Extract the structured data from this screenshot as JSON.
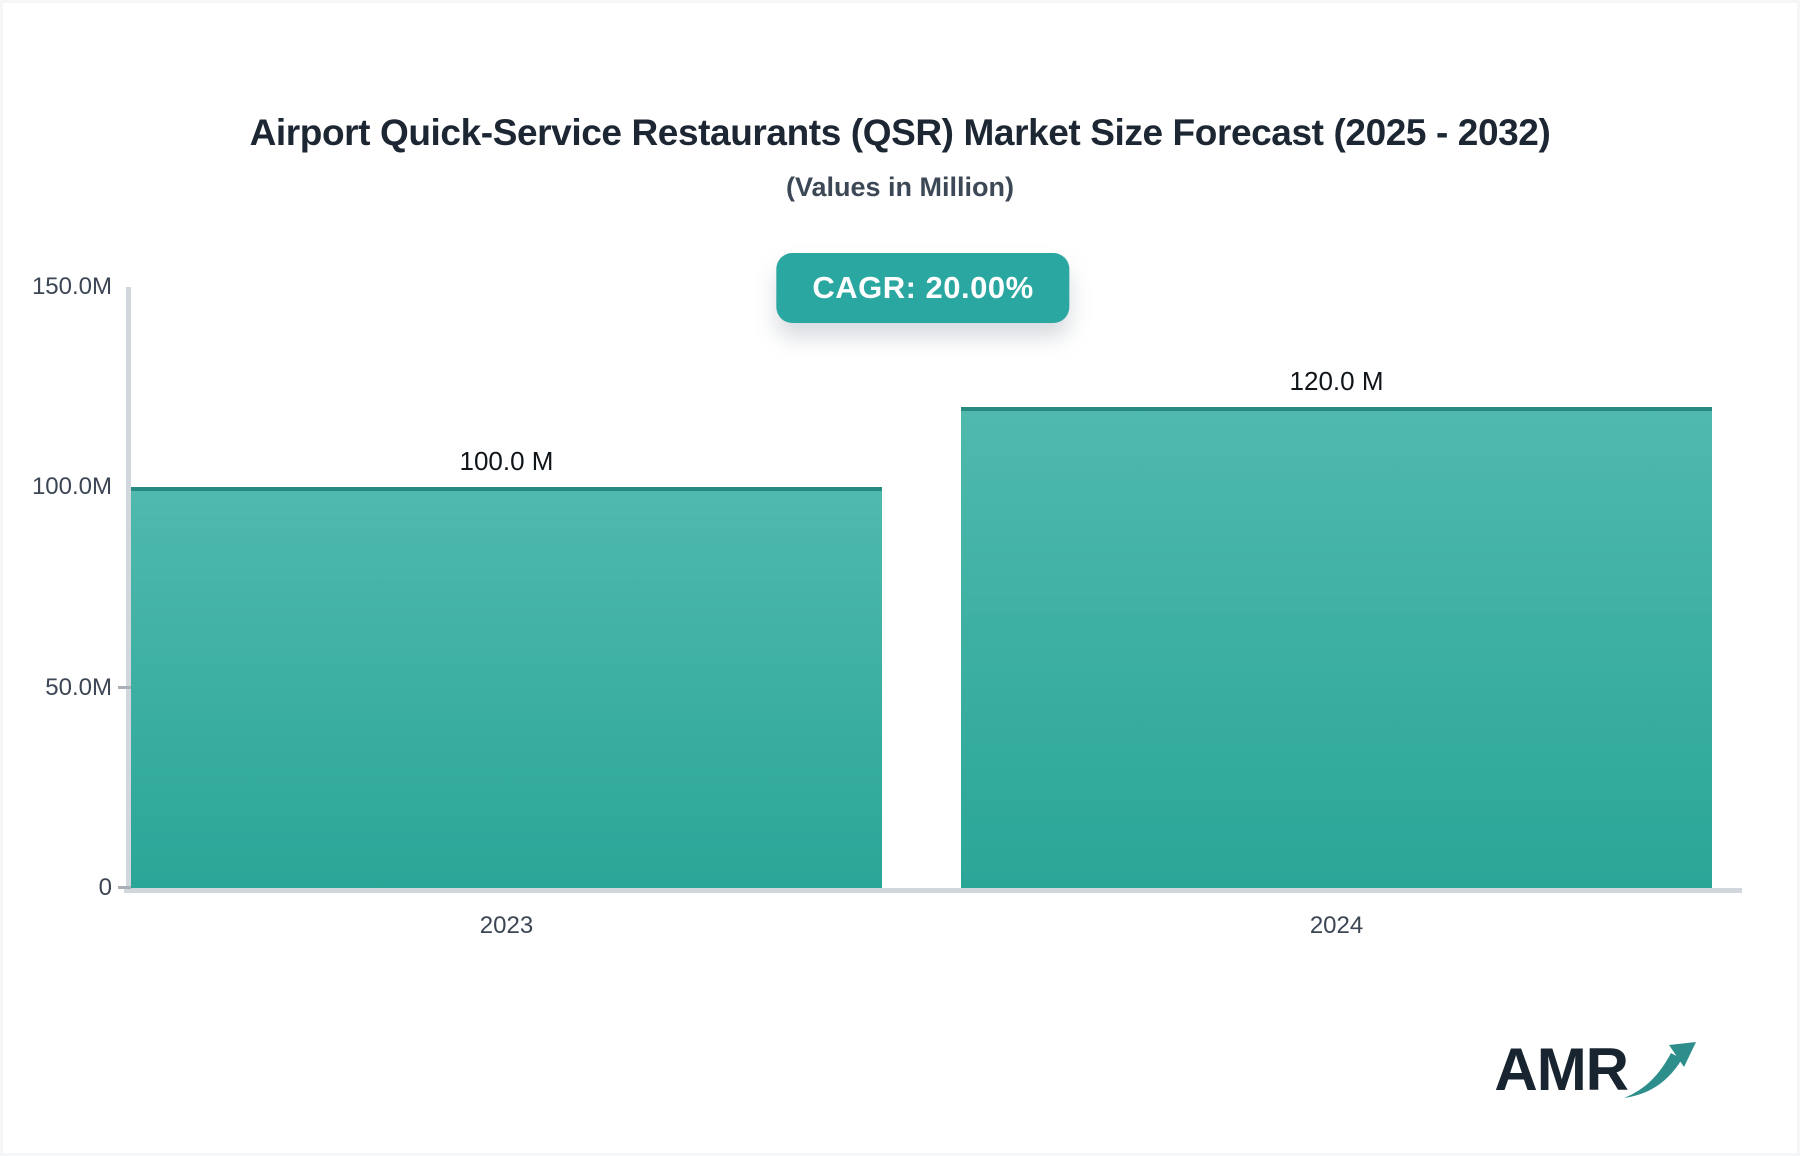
{
  "header": {
    "title": "Airport Quick-Service Restaurants (QSR) Market Size Forecast (2025 - 2032)",
    "subtitle": "(Values in Million)",
    "cagr_label": "CAGR: 20.00%"
  },
  "chart_data": {
    "type": "bar",
    "title": "Airport Quick-Service Restaurants (QSR) Market Size Forecast (2025 - 2032)",
    "subtitle": "(Values in Million)",
    "unit": "Million",
    "cagr_pct": 20.0,
    "categories": [
      "2023",
      "2024"
    ],
    "values": [
      100.0,
      120.0
    ],
    "bar_labels": [
      "100.0 M",
      "120.0 M"
    ],
    "ylim": [
      0,
      150
    ],
    "yticks": [
      {
        "value": 150,
        "label": "150.0M",
        "dash": false
      },
      {
        "value": 100,
        "label": "100.0M",
        "dash": false
      },
      {
        "value": 50,
        "label": "50.0M",
        "dash": true
      },
      {
        "value": 0,
        "label": "0",
        "dash": true
      }
    ],
    "grid": false,
    "legend_position": "none"
  },
  "branding": {
    "logo_text": "AMR"
  },
  "colors": {
    "badge_bg": "#2aa7a0",
    "badge_text": "#ffffff",
    "bar_top": "#4fb9ad",
    "bar_bottom": "#2aa697",
    "bar_edge": "#27897f",
    "axis_line": "#d2d7de",
    "tick_text": "#3c4654",
    "title_text": "#1d2733",
    "subtitle_text": "#3d4856",
    "value_text": "#10151a",
    "logo_text": "#18242f",
    "logo_arrow": "#2e8e8b"
  }
}
